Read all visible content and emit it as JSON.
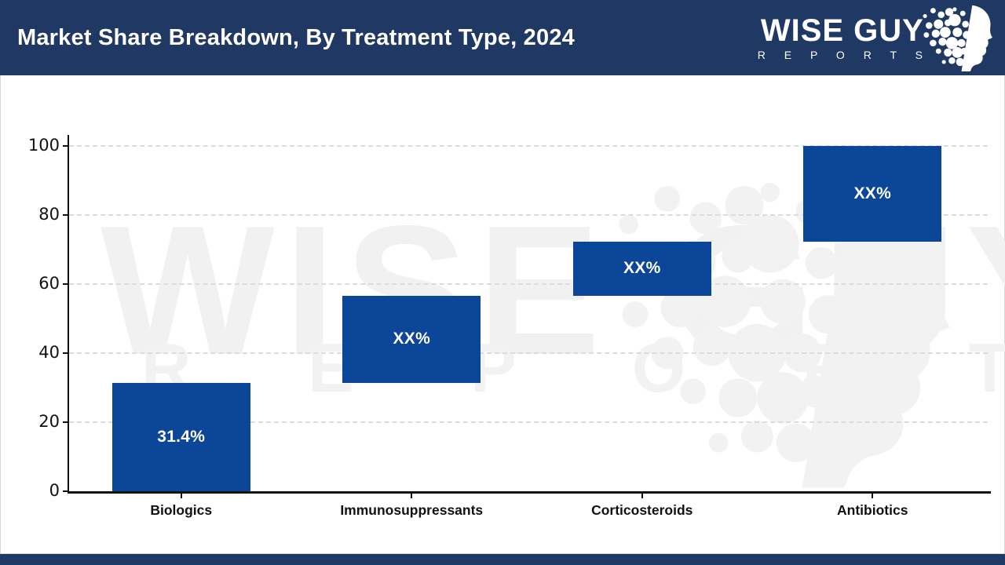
{
  "page": {
    "bg_color": "#ffffff",
    "navy_color": "#1f3864",
    "bar_color": "#0b4699",
    "grid_color": "#dcdcdc",
    "watermark_color": "#f1f1f1"
  },
  "header": {
    "title": "Market Share Breakdown, By Treatment Type, 2024",
    "logo_line1": "WISE GUY",
    "logo_line2": "R E P O R T S"
  },
  "watermark": {
    "line1": "WISE GUY",
    "line2": "R E P O R T S"
  },
  "chart_data": {
    "type": "bar",
    "subtype": "waterfall-floating-bars",
    "title": "Market Share Breakdown, By Treatment Type, 2024",
    "categories": [
      "Biologics",
      "Immunosuppressants",
      "Corticosteroids",
      "Antibiotics"
    ],
    "segments": [
      {
        "category": "Biologics",
        "label": "31.4%",
        "start": 0,
        "end": 31.4
      },
      {
        "category": "Immunosuppressants",
        "label": "XX%",
        "start": 31.4,
        "end": 56.6
      },
      {
        "category": "Corticosteroids",
        "label": "XX%",
        "start": 56.6,
        "end": 72.3
      },
      {
        "category": "Antibiotics",
        "label": "XX%",
        "start": 72.3,
        "end": 100
      }
    ],
    "bar_labels": [
      "31.4%",
      "XX%",
      "XX%",
      "XX%"
    ],
    "yticks": [
      0,
      20,
      40,
      60,
      80,
      100
    ],
    "ylim": [
      0,
      105
    ],
    "xlabel": "",
    "ylabel": "",
    "grid": "horizontal dashed",
    "legend": "none",
    "bar_color": "#0b4699",
    "bar_label_color": "#ffffff"
  }
}
